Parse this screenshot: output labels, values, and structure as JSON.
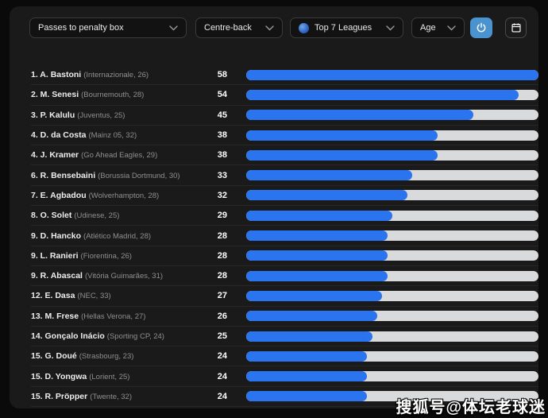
{
  "toolbar": {
    "metric_dropdown": {
      "label": "Passes to penalty box"
    },
    "position_dropdown": {
      "label": "Centre-back"
    },
    "league_dropdown": {
      "label": "Top 7 Leagues"
    },
    "age_dropdown": {
      "label": "Age"
    },
    "icons": [
      "globe-icon",
      "power-icon",
      "calendar-icon"
    ]
  },
  "colors": {
    "bar_fill": "#2b74ef",
    "bar_track": "#d9dadb",
    "panel_bg": "#1a1a1b",
    "page_bg": "#0a0a0a",
    "active_button": "#4b93cf"
  },
  "chart_data": {
    "type": "bar",
    "orientation": "horizontal",
    "title": "Passes to penalty box",
    "filters": [
      "Centre-back",
      "Top 7 Leagues",
      "Age"
    ],
    "max_value": 58,
    "categories": [
      "1. A. Bastoni (Internazionale, 26)",
      "2. M. Senesi (Bournemouth, 28)",
      "3. P. Kalulu (Juventus, 25)",
      "4. D. da Costa (Mainz 05, 32)",
      "4. J. Kramer (Go Ahead Eagles, 29)",
      "6. R. Bensebaini (Borussia Dortmund, 30)",
      "7. E. Agbadou (Wolverhampton, 28)",
      "8. O. Solet (Udinese, 25)",
      "9. D. Hancko (Atlético Madrid, 28)",
      "9. L. Ranieri (Fiorentina, 26)",
      "9. R. Abascal (Vitória Guimarães, 31)",
      "12. E. Dasa (NEC, 33)",
      "13. M. Frese (Hellas Verona, 27)",
      "14. Gonçalo Inácio (Sporting CP, 24)",
      "15. G. Doué (Strasbourg, 23)",
      "15. D. Yongwa (Lorient, 25)",
      "15. R. Pröpper (Twente, 32)"
    ],
    "values": [
      58,
      54,
      45,
      38,
      38,
      33,
      32,
      29,
      28,
      28,
      28,
      27,
      26,
      25,
      24,
      24,
      24
    ],
    "players": [
      {
        "rank": "1",
        "name": "A. Bastoni",
        "club": "Internazionale",
        "age": 26,
        "value": 58
      },
      {
        "rank": "2",
        "name": "M. Senesi",
        "club": "Bournemouth",
        "age": 28,
        "value": 54
      },
      {
        "rank": "3",
        "name": "P. Kalulu",
        "club": "Juventus",
        "age": 25,
        "value": 45
      },
      {
        "rank": "4",
        "name": "D. da Costa",
        "club": "Mainz 05",
        "age": 32,
        "value": 38
      },
      {
        "rank": "4",
        "name": "J. Kramer",
        "club": "Go Ahead Eagles",
        "age": 29,
        "value": 38
      },
      {
        "rank": "6",
        "name": "R. Bensebaini",
        "club": "Borussia Dortmund",
        "age": 30,
        "value": 33
      },
      {
        "rank": "7",
        "name": "E. Agbadou",
        "club": "Wolverhampton",
        "age": 28,
        "value": 32
      },
      {
        "rank": "8",
        "name": "O. Solet",
        "club": "Udinese",
        "age": 25,
        "value": 29
      },
      {
        "rank": "9",
        "name": "D. Hancko",
        "club": "Atlético Madrid",
        "age": 28,
        "value": 28
      },
      {
        "rank": "9",
        "name": "L. Ranieri",
        "club": "Fiorentina",
        "age": 26,
        "value": 28
      },
      {
        "rank": "9",
        "name": "R. Abascal",
        "club": "Vitória Guimarães",
        "age": 31,
        "value": 28
      },
      {
        "rank": "12",
        "name": "E. Dasa",
        "club": "NEC",
        "age": 33,
        "value": 27
      },
      {
        "rank": "13",
        "name": "M. Frese",
        "club": "Hellas Verona",
        "age": 27,
        "value": 26
      },
      {
        "rank": "14",
        "name": "Gonçalo Inácio",
        "club": "Sporting CP",
        "age": 24,
        "value": 25
      },
      {
        "rank": "15",
        "name": "G. Doué",
        "club": "Strasbourg",
        "age": 23,
        "value": 24
      },
      {
        "rank": "15",
        "name": "D. Yongwa",
        "club": "Lorient",
        "age": 25,
        "value": 24
      },
      {
        "rank": "15",
        "name": "R. Pröpper",
        "club": "Twente",
        "age": 32,
        "value": 24
      }
    ]
  },
  "watermark": "搜狐号@体坛老球迷"
}
